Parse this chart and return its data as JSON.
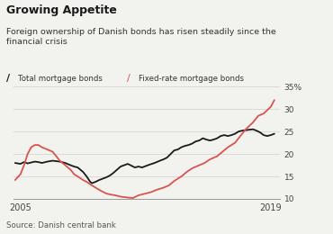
{
  "title": "Growing Appetite",
  "subtitle": "Foreign ownership of Danish bonds has risen steadily since the\nfinancial crisis",
  "source": "Source: Danish central bank",
  "legend": [
    "Total mortgage bonds",
    "Fixed-rate mortgage bonds"
  ],
  "line1_color": "#1a1a1a",
  "line2_color": "#d9534f",
  "background_color": "#f2f2ee",
  "ylim": [
    10,
    35
  ],
  "yticks": [
    10,
    15,
    20,
    25,
    30,
    35
  ],
  "ytick_labels": [
    "10",
    "15",
    "20",
    "25",
    "30",
    "35%"
  ],
  "xlim_start": 2004.6,
  "xlim_end": 2019.5,
  "xticks": [
    2005,
    2019
  ],
  "total_mortgage_x": [
    2004.7,
    2005.0,
    2005.2,
    2005.4,
    2005.6,
    2005.8,
    2006.0,
    2006.2,
    2006.5,
    2006.8,
    2007.0,
    2007.2,
    2007.5,
    2007.8,
    2008.0,
    2008.2,
    2008.5,
    2008.7,
    2008.9,
    2009.0,
    2009.2,
    2009.4,
    2009.6,
    2009.8,
    2010.0,
    2010.2,
    2010.4,
    2010.6,
    2010.8,
    2011.0,
    2011.2,
    2011.4,
    2011.6,
    2011.8,
    2012.0,
    2012.2,
    2012.5,
    2012.8,
    2013.0,
    2013.2,
    2013.4,
    2013.6,
    2013.8,
    2014.0,
    2014.2,
    2014.4,
    2014.6,
    2014.8,
    2015.0,
    2015.2,
    2015.4,
    2015.6,
    2015.8,
    2016.0,
    2016.2,
    2016.4,
    2016.6,
    2016.8,
    2017.0,
    2017.2,
    2017.4,
    2017.6,
    2017.8,
    2018.0,
    2018.2,
    2018.4,
    2018.6,
    2018.8,
    2019.0,
    2019.2
  ],
  "total_mortgage_y": [
    18.0,
    17.8,
    18.2,
    17.9,
    18.1,
    18.3,
    18.2,
    18.0,
    18.3,
    18.5,
    18.4,
    18.3,
    18.0,
    17.5,
    17.2,
    17.0,
    16.0,
    15.0,
    13.8,
    13.5,
    13.8,
    14.2,
    14.5,
    14.8,
    15.2,
    15.8,
    16.5,
    17.2,
    17.5,
    17.8,
    17.4,
    17.0,
    17.2,
    17.0,
    17.3,
    17.6,
    18.0,
    18.5,
    18.8,
    19.2,
    20.0,
    20.8,
    21.0,
    21.5,
    21.8,
    22.0,
    22.3,
    22.8,
    23.0,
    23.5,
    23.2,
    23.0,
    23.2,
    23.5,
    24.0,
    24.2,
    24.0,
    24.2,
    24.5,
    25.0,
    25.2,
    25.3,
    25.4,
    25.5,
    25.2,
    24.8,
    24.2,
    24.0,
    24.2,
    24.5
  ],
  "fixed_rate_x": [
    2004.7,
    2005.0,
    2005.2,
    2005.4,
    2005.6,
    2005.8,
    2006.0,
    2006.2,
    2006.5,
    2006.8,
    2007.0,
    2007.2,
    2007.5,
    2007.8,
    2008.0,
    2008.2,
    2008.5,
    2008.7,
    2009.0,
    2009.2,
    2009.5,
    2009.8,
    2010.0,
    2010.3,
    2010.6,
    2011.0,
    2011.3,
    2011.6,
    2012.0,
    2012.3,
    2012.6,
    2013.0,
    2013.3,
    2013.6,
    2014.0,
    2014.3,
    2014.6,
    2015.0,
    2015.3,
    2015.6,
    2016.0,
    2016.3,
    2016.6,
    2017.0,
    2017.3,
    2017.6,
    2018.0,
    2018.3,
    2018.6,
    2019.0,
    2019.2
  ],
  "fixed_rate_y": [
    14.2,
    15.5,
    17.5,
    20.0,
    21.5,
    22.0,
    22.0,
    21.5,
    21.0,
    20.5,
    19.5,
    18.5,
    17.5,
    16.5,
    15.5,
    15.0,
    14.2,
    13.8,
    13.0,
    12.5,
    11.8,
    11.2,
    11.0,
    10.8,
    10.5,
    10.3,
    10.2,
    10.8,
    11.2,
    11.5,
    12.0,
    12.5,
    13.0,
    14.0,
    15.0,
    16.0,
    16.8,
    17.5,
    18.0,
    18.8,
    19.5,
    20.5,
    21.5,
    22.5,
    24.0,
    25.5,
    27.0,
    28.5,
    29.0,
    30.5,
    32.0
  ]
}
